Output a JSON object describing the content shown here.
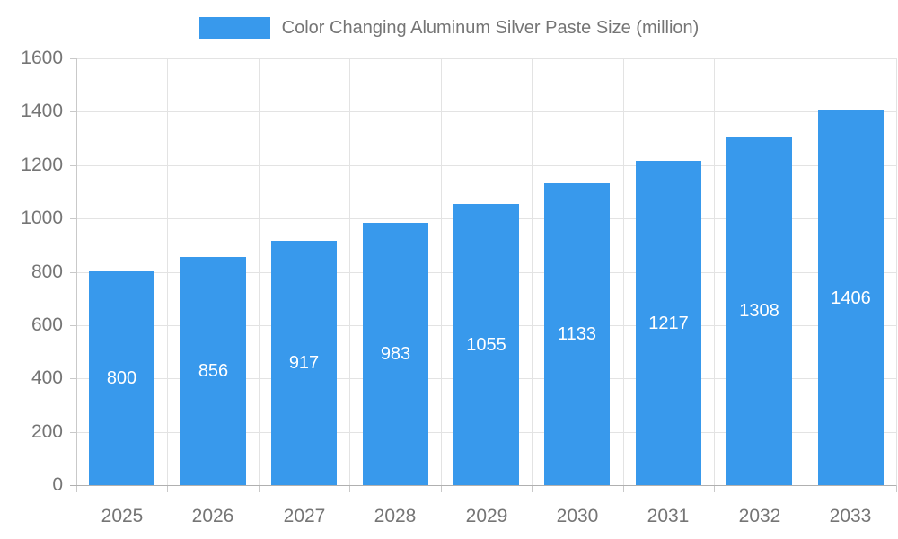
{
  "chart_data": {
    "type": "bar",
    "title": "Color Changing Aluminum Silver Paste Size (million)",
    "categories": [
      "2025",
      "2026",
      "2027",
      "2028",
      "2029",
      "2030",
      "2031",
      "2032",
      "2033"
    ],
    "values": [
      800,
      856,
      917,
      983,
      1055,
      1133,
      1217,
      1308,
      1406
    ],
    "xlabel": "",
    "ylabel": "",
    "ylim": [
      0,
      1600
    ],
    "ytick_step": 200,
    "grid": true,
    "legend_position": "top-center",
    "colors": {
      "bar": "#3899EC",
      "bar_value_text": "#ffffff",
      "axis_text": "#757575",
      "gridline": "#e3e3e3",
      "axis_line": "#c9c9c9",
      "baseline": "#b0b0b0"
    }
  }
}
